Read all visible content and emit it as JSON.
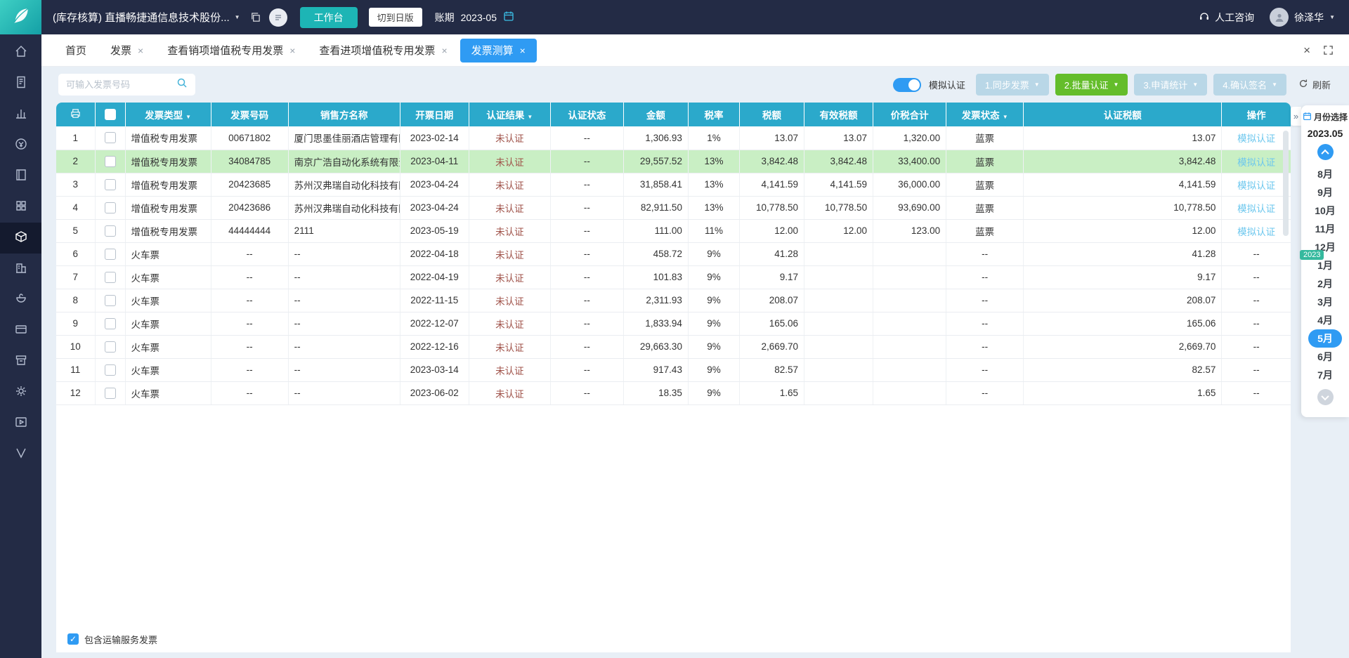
{
  "topbar": {
    "company": "(库存核算) 直播畅捷通信息技术股份...",
    "workbench_label": "工作台",
    "switch_label": "切到日版",
    "period_label": "账期",
    "period_value": "2023-05",
    "support_label": "人工咨询",
    "username": "徐泽华"
  },
  "sidebar": {
    "items": [
      {
        "name": "home",
        "active": false
      },
      {
        "name": "invoice",
        "active": false
      },
      {
        "name": "chart",
        "active": false
      },
      {
        "name": "cashier",
        "active": false
      },
      {
        "name": "ledger",
        "active": false
      },
      {
        "name": "apps",
        "active": false
      },
      {
        "name": "inventory",
        "active": true
      },
      {
        "name": "enterprise",
        "active": false
      },
      {
        "name": "service",
        "active": false
      },
      {
        "name": "card",
        "active": false
      },
      {
        "name": "assets",
        "active": false
      },
      {
        "name": "settings",
        "active": false
      },
      {
        "name": "media",
        "active": false
      },
      {
        "name": "vip",
        "active": false
      }
    ]
  },
  "tabs": {
    "items": [
      {
        "label": "首页",
        "closable": false,
        "active": false
      },
      {
        "label": "发票",
        "closable": true,
        "active": false
      },
      {
        "label": "查看销项增值税专用发票",
        "closable": true,
        "active": false
      },
      {
        "label": "查看进项增值税专用发票",
        "closable": true,
        "active": false
      },
      {
        "label": "发票测算",
        "closable": true,
        "active": true
      }
    ]
  },
  "toolbar": {
    "search_placeholder": "可输入发票号码",
    "simulate_label": "模拟认证",
    "actions": [
      {
        "label": "1.同步发票",
        "primary": false
      },
      {
        "label": "2.批量认证",
        "primary": true
      },
      {
        "label": "3.申请统计",
        "primary": false
      },
      {
        "label": "4.确认签名",
        "primary": false
      }
    ],
    "refresh_label": "刷新"
  },
  "table": {
    "headers": [
      {
        "label": "发票类型",
        "sortable": true
      },
      {
        "label": "发票号码",
        "sortable": false
      },
      {
        "label": "销售方名称",
        "sortable": false
      },
      {
        "label": "开票日期",
        "sortable": false
      },
      {
        "label": "认证结果",
        "sortable": true
      },
      {
        "label": "认证状态",
        "sortable": false
      },
      {
        "label": "金额",
        "sortable": false
      },
      {
        "label": "税率",
        "sortable": false
      },
      {
        "label": "税额",
        "sortable": false
      },
      {
        "label": "有效税额",
        "sortable": false
      },
      {
        "label": "价税合计",
        "sortable": false
      },
      {
        "label": "发票状态",
        "sortable": true
      },
      {
        "label": "认证税额",
        "sortable": false
      },
      {
        "label": "操作",
        "sortable": false
      }
    ],
    "rows": [
      {
        "num": "1",
        "type": "增值税专用发票",
        "number": "00671802",
        "seller": "厦门思墨佳丽酒店管理有限…",
        "date": "2023-02-14",
        "result": "未认证",
        "status": "--",
        "amount": "1,306.93",
        "rate": "1%",
        "tax": "13.07",
        "valid_tax": "13.07",
        "total": "1,320.00",
        "invoice_status": "蓝票",
        "cert_tax": "13.07",
        "action": "模拟认证",
        "highlight": false
      },
      {
        "num": "2",
        "type": "增值税专用发票",
        "number": "34084785",
        "seller": "南京广浩自动化系统有限责…",
        "date": "2023-04-11",
        "result": "未认证",
        "status": "--",
        "amount": "29,557.52",
        "rate": "13%",
        "tax": "3,842.48",
        "valid_tax": "3,842.48",
        "total": "33,400.00",
        "invoice_status": "蓝票",
        "cert_tax": "3,842.48",
        "action": "模拟认证",
        "highlight": true
      },
      {
        "num": "3",
        "type": "增值税专用发票",
        "number": "20423685",
        "seller": "苏州汉弗瑞自动化科技有限…",
        "date": "2023-04-24",
        "result": "未认证",
        "status": "--",
        "amount": "31,858.41",
        "rate": "13%",
        "tax": "4,141.59",
        "valid_tax": "4,141.59",
        "total": "36,000.00",
        "invoice_status": "蓝票",
        "cert_tax": "4,141.59",
        "action": "模拟认证",
        "highlight": false
      },
      {
        "num": "4",
        "type": "增值税专用发票",
        "number": "20423686",
        "seller": "苏州汉弗瑞自动化科技有限…",
        "date": "2023-04-24",
        "result": "未认证",
        "status": "--",
        "amount": "82,911.50",
        "rate": "13%",
        "tax": "10,778.50",
        "valid_tax": "10,778.50",
        "total": "93,690.00",
        "invoice_status": "蓝票",
        "cert_tax": "10,778.50",
        "action": "模拟认证",
        "highlight": false
      },
      {
        "num": "5",
        "type": "增值税专用发票",
        "number": "44444444",
        "seller": "2111",
        "date": "2023-05-19",
        "result": "未认证",
        "status": "--",
        "amount": "111.00",
        "rate": "11%",
        "tax": "12.00",
        "valid_tax": "12.00",
        "total": "123.00",
        "invoice_status": "蓝票",
        "cert_tax": "12.00",
        "action": "模拟认证",
        "highlight": false
      },
      {
        "num": "6",
        "type": "火车票",
        "number": "--",
        "seller": "--",
        "date": "2022-04-18",
        "result": "未认证",
        "status": "--",
        "amount": "458.72",
        "rate": "9%",
        "tax": "41.28",
        "valid_tax": "",
        "total": "",
        "invoice_status": "--",
        "cert_tax": "41.28",
        "action": "--",
        "highlight": false
      },
      {
        "num": "7",
        "type": "火车票",
        "number": "--",
        "seller": "--",
        "date": "2022-04-19",
        "result": "未认证",
        "status": "--",
        "amount": "101.83",
        "rate": "9%",
        "tax": "9.17",
        "valid_tax": "",
        "total": "",
        "invoice_status": "--",
        "cert_tax": "9.17",
        "action": "--",
        "highlight": false
      },
      {
        "num": "8",
        "type": "火车票",
        "number": "--",
        "seller": "--",
        "date": "2022-11-15",
        "result": "未认证",
        "status": "--",
        "amount": "2,311.93",
        "rate": "9%",
        "tax": "208.07",
        "valid_tax": "",
        "total": "",
        "invoice_status": "--",
        "cert_tax": "208.07",
        "action": "--",
        "highlight": false
      },
      {
        "num": "9",
        "type": "火车票",
        "number": "--",
        "seller": "--",
        "date": "2022-12-07",
        "result": "未认证",
        "status": "--",
        "amount": "1,833.94",
        "rate": "9%",
        "tax": "165.06",
        "valid_tax": "",
        "total": "",
        "invoice_status": "--",
        "cert_tax": "165.06",
        "action": "--",
        "highlight": false
      },
      {
        "num": "10",
        "type": "火车票",
        "number": "--",
        "seller": "--",
        "date": "2022-12-16",
        "result": "未认证",
        "status": "--",
        "amount": "29,663.30",
        "rate": "9%",
        "tax": "2,669.70",
        "valid_tax": "",
        "total": "",
        "invoice_status": "--",
        "cert_tax": "2,669.70",
        "action": "--",
        "highlight": false
      },
      {
        "num": "11",
        "type": "火车票",
        "number": "--",
        "seller": "--",
        "date": "2023-03-14",
        "result": "未认证",
        "status": "--",
        "amount": "917.43",
        "rate": "9%",
        "tax": "82.57",
        "valid_tax": "",
        "total": "",
        "invoice_status": "--",
        "cert_tax": "82.57",
        "action": "--",
        "highlight": false
      },
      {
        "num": "12",
        "type": "火车票",
        "number": "--",
        "seller": "--",
        "date": "2023-06-02",
        "result": "未认证",
        "status": "--",
        "amount": "18.35",
        "rate": "9%",
        "tax": "1.65",
        "valid_tax": "",
        "total": "",
        "invoice_status": "--",
        "cert_tax": "1.65",
        "action": "--",
        "highlight": false
      }
    ]
  },
  "month_panel": {
    "title": "月份选择",
    "period": "2023.05",
    "year_badge": "2023",
    "months": [
      "8月",
      "9月",
      "10月",
      "11月",
      "12月",
      "1月",
      "2月",
      "3月",
      "4月",
      "5月",
      "6月",
      "7月"
    ],
    "active_index": 9,
    "badge_after_index": 4
  },
  "footer": {
    "transport_label": "包含运输服务发票"
  },
  "colors": {
    "header_teal": "#2ba9cb",
    "accent_blue": "#2f9bf3",
    "primary_green": "#64bd2b",
    "highlight_row_green": "#c9efc4",
    "navy": "#232b45"
  }
}
